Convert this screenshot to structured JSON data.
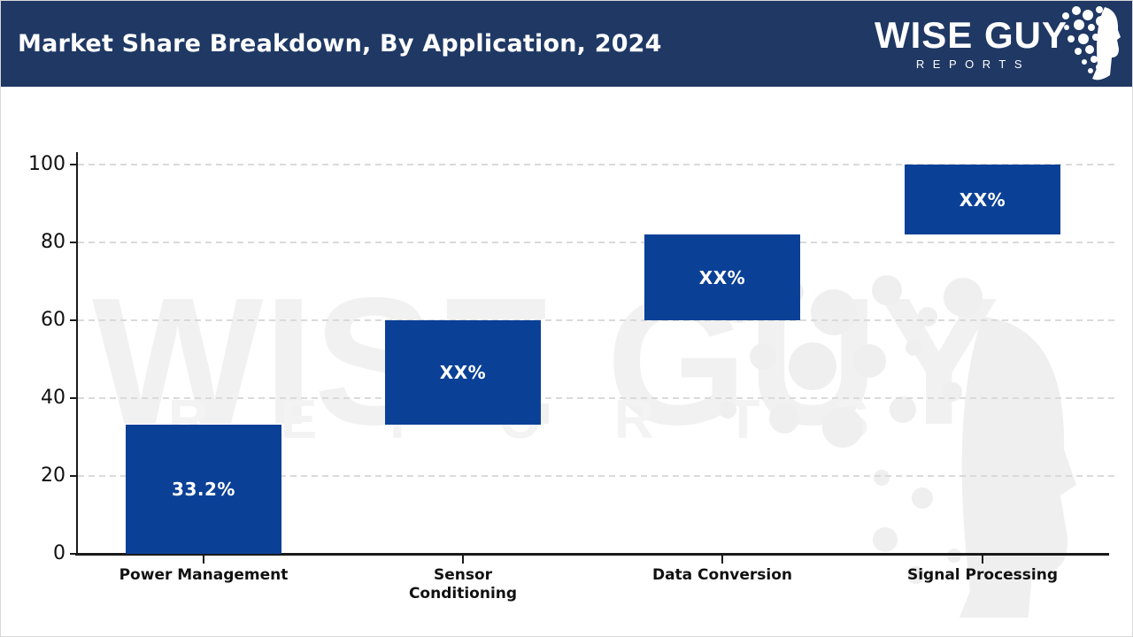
{
  "header": {
    "title": "Market Share Breakdown, By Application, 2024",
    "logo": {
      "name": "WISE GUY",
      "tagline": "REPORTS"
    }
  },
  "watermark": {
    "line1": "WISE GUY",
    "line2": "REPORTS"
  },
  "chart_data": {
    "type": "bar",
    "subtype": "waterfall",
    "title": "Market Share Breakdown, By Application, 2024",
    "categories": [
      "Power Management",
      "Sensor\nConditioning",
      "Data Conversion",
      "Signal Processing"
    ],
    "segments": [
      {
        "category": "Power Management",
        "start": 0,
        "end": 33.2,
        "label": "33.2%"
      },
      {
        "category": "Sensor Conditioning",
        "start": 33.2,
        "end": 60,
        "label": "XX%"
      },
      {
        "category": "Data Conversion",
        "start": 60,
        "end": 82,
        "label": "XX%"
      },
      {
        "category": "Signal Processing",
        "start": 82,
        "end": 100,
        "label": "XX%"
      }
    ],
    "bar_labels": [
      "33.2%",
      "XX%",
      "XX%",
      "XX%"
    ],
    "ylim": [
      0,
      100
    ],
    "yticks": [
      0,
      20,
      40,
      60,
      80,
      100
    ],
    "grid": "horizontal-dashed",
    "legend": "none",
    "colors": {
      "bar": "#0b4097",
      "bar_label": "#ffffff",
      "header_bg": "#1f3864",
      "header_text": "#ffffff",
      "axis": "#1a1a1a",
      "gridline": "#dadada",
      "watermark": "#f1f1f1"
    }
  }
}
